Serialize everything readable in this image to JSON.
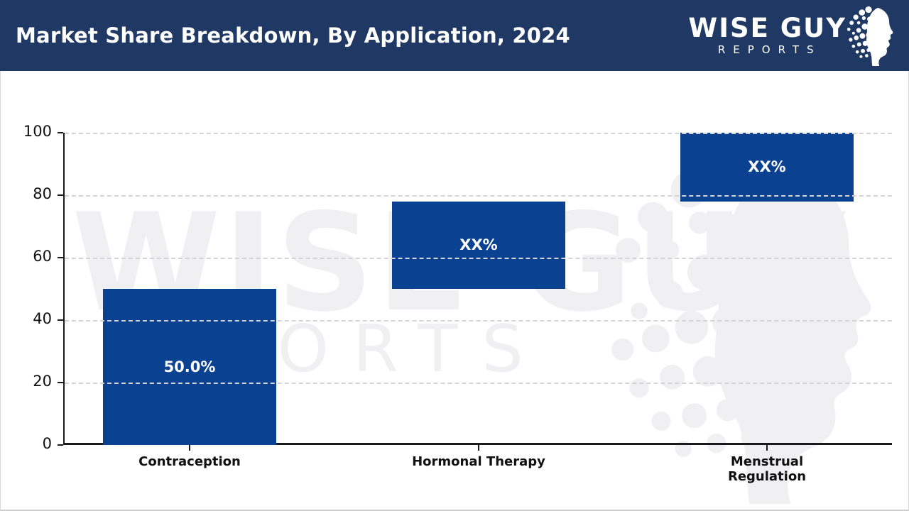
{
  "header": {
    "title": "Market Share Breakdown, By Application, 2024",
    "logo": {
      "brand": "WISE GUY",
      "sub": "REPORTS"
    }
  },
  "watermark": {
    "brand": "WISE GUY",
    "sub": "PORTS"
  },
  "chart_data": {
    "type": "bar",
    "subtype": "waterfall-breakdown",
    "title": "Market Share Breakdown, By Application, 2024",
    "categories": [
      "Contraception",
      "Hormonal Therapy",
      "Menstrual Regulation"
    ],
    "category_label_lines": [
      [
        "Contraception"
      ],
      [
        "Hormonal Therapy"
      ],
      [
        "Menstrual",
        "Regulation"
      ]
    ],
    "segments": [
      {
        "category": "Contraception",
        "start": 0,
        "end": 50,
        "label": "50.0%"
      },
      {
        "category": "Hormonal Therapy",
        "start": 50,
        "end": 78,
        "label": "XX%"
      },
      {
        "category": "Menstrual Regulation",
        "start": 78,
        "end": 100,
        "label": "XX%"
      }
    ],
    "ylim": [
      0,
      100
    ],
    "yticks": [
      0,
      20,
      40,
      60,
      80,
      100
    ],
    "xlabel": "",
    "ylabel": "",
    "legend": "none",
    "grid": {
      "horizontal": true,
      "style": "dashed",
      "drawn_over_bars": true
    },
    "colors": {
      "bar": "#0a4191",
      "bar_label": "#ffffff",
      "grid": "#d4d4d6",
      "axis": "#1a1a1a",
      "header_bg": "#1f3864",
      "watermark": "#f0f0f3"
    }
  }
}
